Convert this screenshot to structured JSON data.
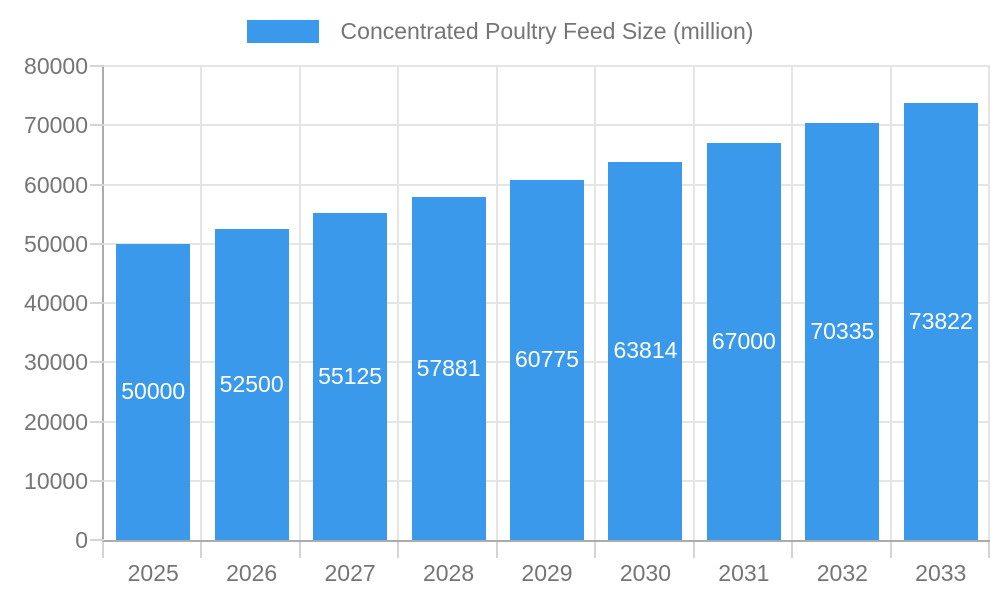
{
  "chart_data": {
    "type": "bar",
    "legend": "Concentrated Poultry Feed Size (million)",
    "categories": [
      "2025",
      "2026",
      "2027",
      "2028",
      "2029",
      "2030",
      "2031",
      "2032",
      "2033"
    ],
    "values": [
      50000,
      52500,
      55125,
      57881,
      60775,
      63814,
      67000,
      70335,
      73822
    ],
    "ylim": [
      0,
      80000
    ],
    "ytick_step": 10000,
    "ytick_labels": [
      "0",
      "10000",
      "20000",
      "30000",
      "40000",
      "50000",
      "60000",
      "70000",
      "80000"
    ],
    "grid": "on",
    "legend_position": "top-center",
    "colors": {
      "bar": "#3B99EC",
      "bar_label": "#FFFFFF",
      "axis_line": "#ABABAB",
      "gridline": "#E5E5E5",
      "tick_mark": "#D4D4D4",
      "tick_label": "#757575",
      "background": "#FFFFFF"
    }
  }
}
